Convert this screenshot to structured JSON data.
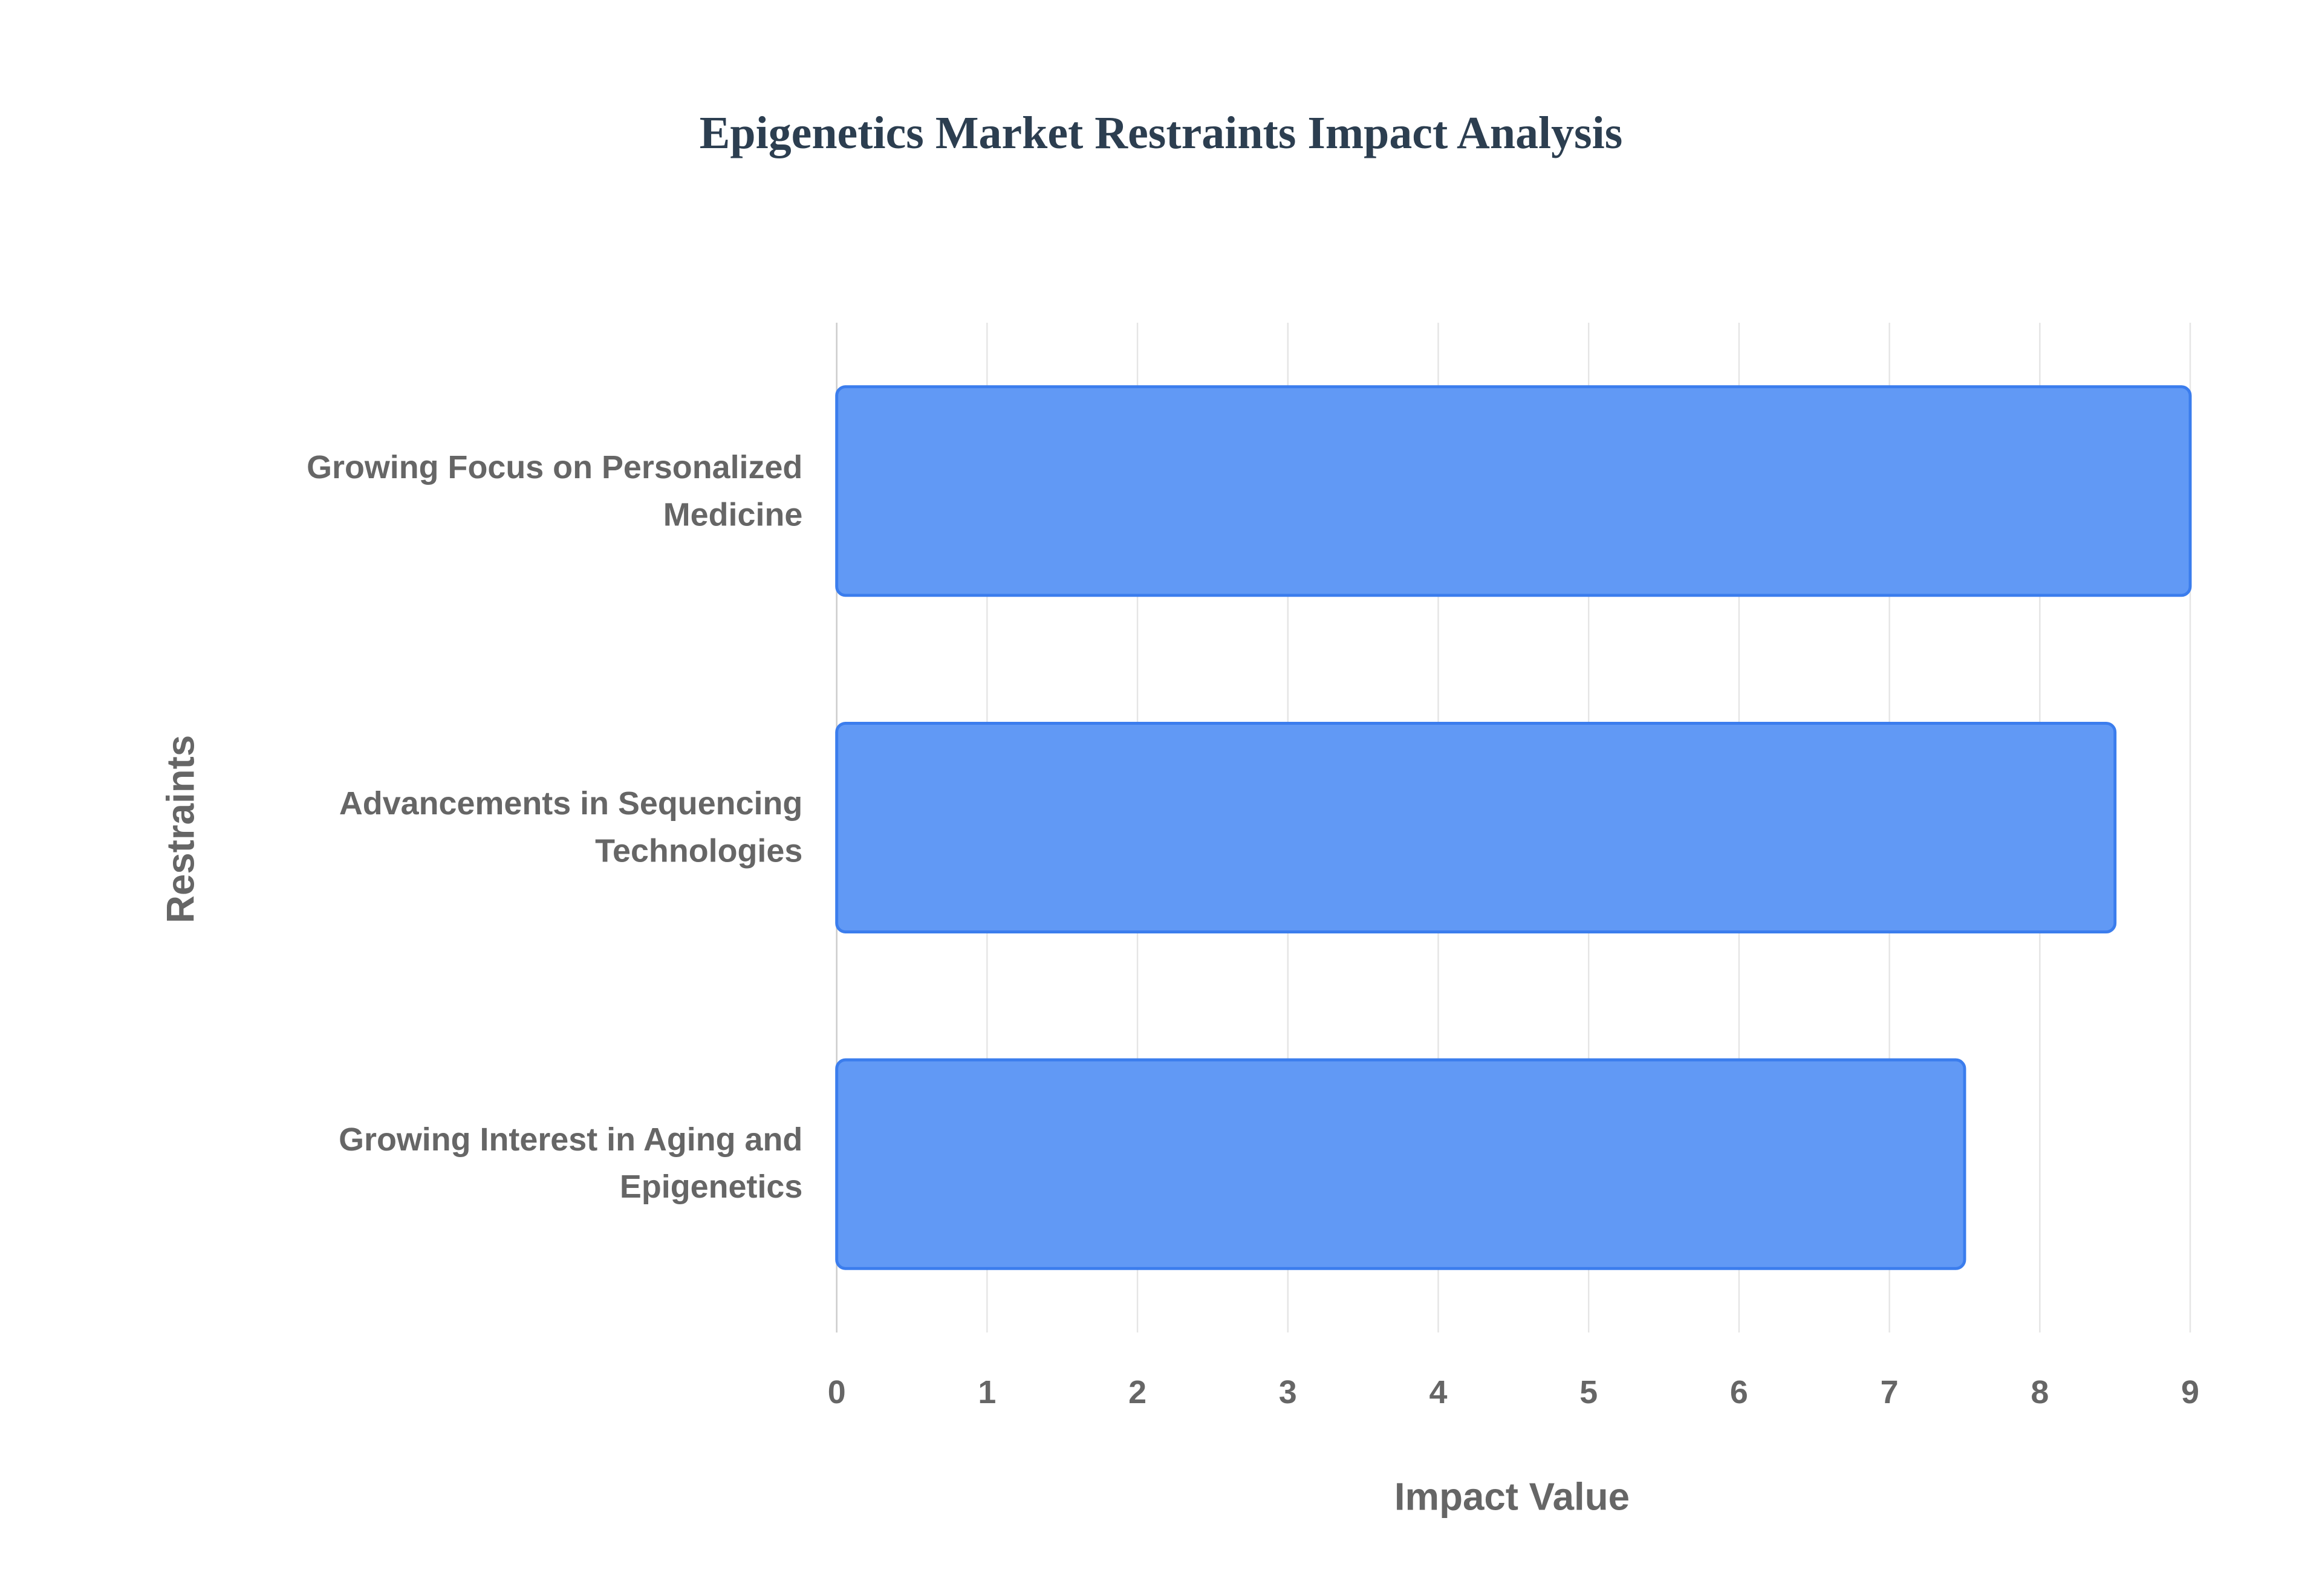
{
  "chart_data": {
    "type": "bar",
    "orientation": "horizontal",
    "title": "Epigenetics Market Restraints Impact Analysis",
    "x_label": "Impact Value",
    "y_label": "Restraints",
    "categories": [
      "Growing Focus on Personalized Medicine",
      "Advancements in Sequencing Technologies",
      "Growing Interest in Aging and Epigenetics"
    ],
    "values": [
      9,
      8.5,
      7.5
    ],
    "color": "#6199f5",
    "edge_color": "#3b7ded",
    "xlim": [
      0,
      9
    ],
    "xticks": [
      0,
      1,
      2,
      3,
      4,
      5,
      6,
      7,
      8,
      9
    ],
    "grid": true
  }
}
